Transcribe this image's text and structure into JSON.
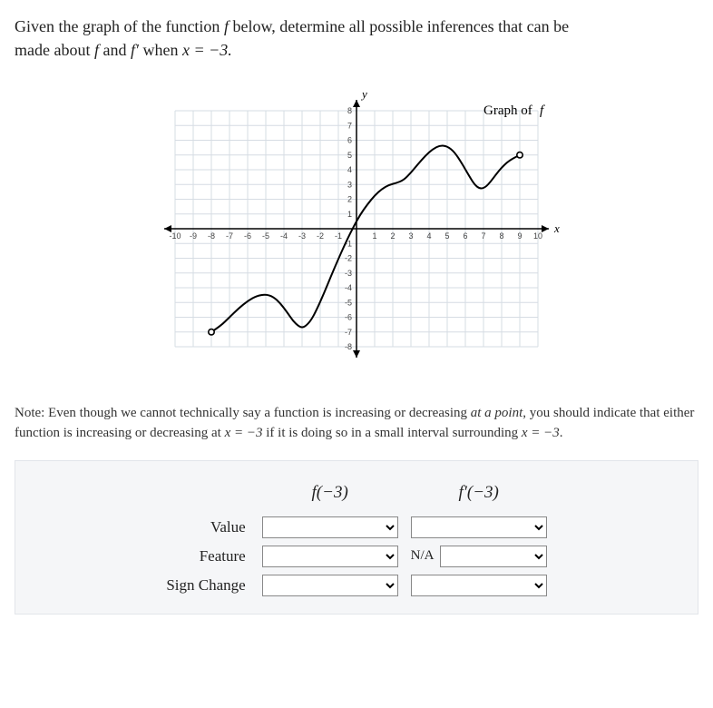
{
  "prompt": {
    "line1_a": "Given the graph of the function ",
    "fn": "f",
    "line1_b": " below, determine all possible inferences that can be",
    "line2_a": "made about ",
    "line2_b": " and ",
    "fprime": "f′",
    "line2_c": " when ",
    "eq": "x = −3.",
    "line2_d": ""
  },
  "graph": {
    "title": "Graph of f",
    "x_label": "x",
    "y_label": "y",
    "xlim": [
      -10,
      10
    ],
    "ylim": [
      -8,
      8
    ],
    "xticks": [
      "-10",
      "-9",
      "-8",
      "-7",
      "-6",
      "-5",
      "-4",
      "-3",
      "-2",
      "-1",
      "",
      "1",
      "2",
      "3",
      "4",
      "5",
      "6",
      "7",
      "8",
      "9",
      "10"
    ],
    "yticks": [
      "-8",
      "-7",
      "-6",
      "-5",
      "-4",
      "-3",
      "-2",
      "-1",
      "",
      "1",
      "2",
      "3",
      "4",
      "5",
      "6",
      "7",
      "8"
    ],
    "curve_points": [
      [
        -8,
        -7
      ],
      [
        -7.5,
        -6.6
      ],
      [
        -7,
        -6
      ],
      [
        -6.5,
        -5.4
      ],
      [
        -6,
        -4.9
      ],
      [
        -5.5,
        -4.55
      ],
      [
        -5,
        -4.45
      ],
      [
        -4.6,
        -4.6
      ],
      [
        -4.2,
        -5.05
      ],
      [
        -3.8,
        -5.7
      ],
      [
        -3.5,
        -6.25
      ],
      [
        -3.2,
        -6.6
      ],
      [
        -3,
        -6.7
      ],
      [
        -2.8,
        -6.6
      ],
      [
        -2.5,
        -6.2
      ],
      [
        -2.2,
        -5.5
      ],
      [
        -1.8,
        -4.4
      ],
      [
        -1.4,
        -3.2
      ],
      [
        -1,
        -2.05
      ],
      [
        -0.6,
        -0.95
      ],
      [
        -0.2,
        0.05
      ],
      [
        0.2,
        0.95
      ],
      [
        0.6,
        1.65
      ],
      [
        1,
        2.25
      ],
      [
        1.4,
        2.7
      ],
      [
        1.8,
        2.98
      ],
      [
        2.2,
        3.1
      ],
      [
        2.6,
        3.3
      ],
      [
        3,
        3.8
      ],
      [
        3.4,
        4.4
      ],
      [
        3.8,
        4.95
      ],
      [
        4.2,
        5.4
      ],
      [
        4.6,
        5.65
      ],
      [
        5,
        5.6
      ],
      [
        5.4,
        5.2
      ],
      [
        5.8,
        4.45
      ],
      [
        6.2,
        3.6
      ],
      [
        6.5,
        3.0
      ],
      [
        6.8,
        2.7
      ],
      [
        7.1,
        2.8
      ],
      [
        7.4,
        3.2
      ],
      [
        7.7,
        3.7
      ],
      [
        8,
        4.15
      ],
      [
        8.3,
        4.5
      ],
      [
        8.6,
        4.75
      ],
      [
        9,
        5
      ]
    ],
    "open_points": [
      [
        -8,
        -7
      ],
      [
        9,
        5
      ]
    ],
    "grid_color": "#d6dce3",
    "axis_color": "#000000",
    "background": "#ffffff"
  },
  "note": {
    "a": "Note: Even though we cannot technically say a function is increasing or decreasing ",
    "b": "at a point",
    "c": ", you should indicate that either function is increasing or decreasing at ",
    "eq": "x = −3",
    "d": " if it is doing so in a small interval surrounding ",
    "e": "."
  },
  "table": {
    "col1": "f(−3)",
    "col2": "f′(−3)",
    "rows": {
      "value": "Value",
      "feature": "Feature",
      "sign": "Sign Change"
    },
    "na": "N/A"
  }
}
